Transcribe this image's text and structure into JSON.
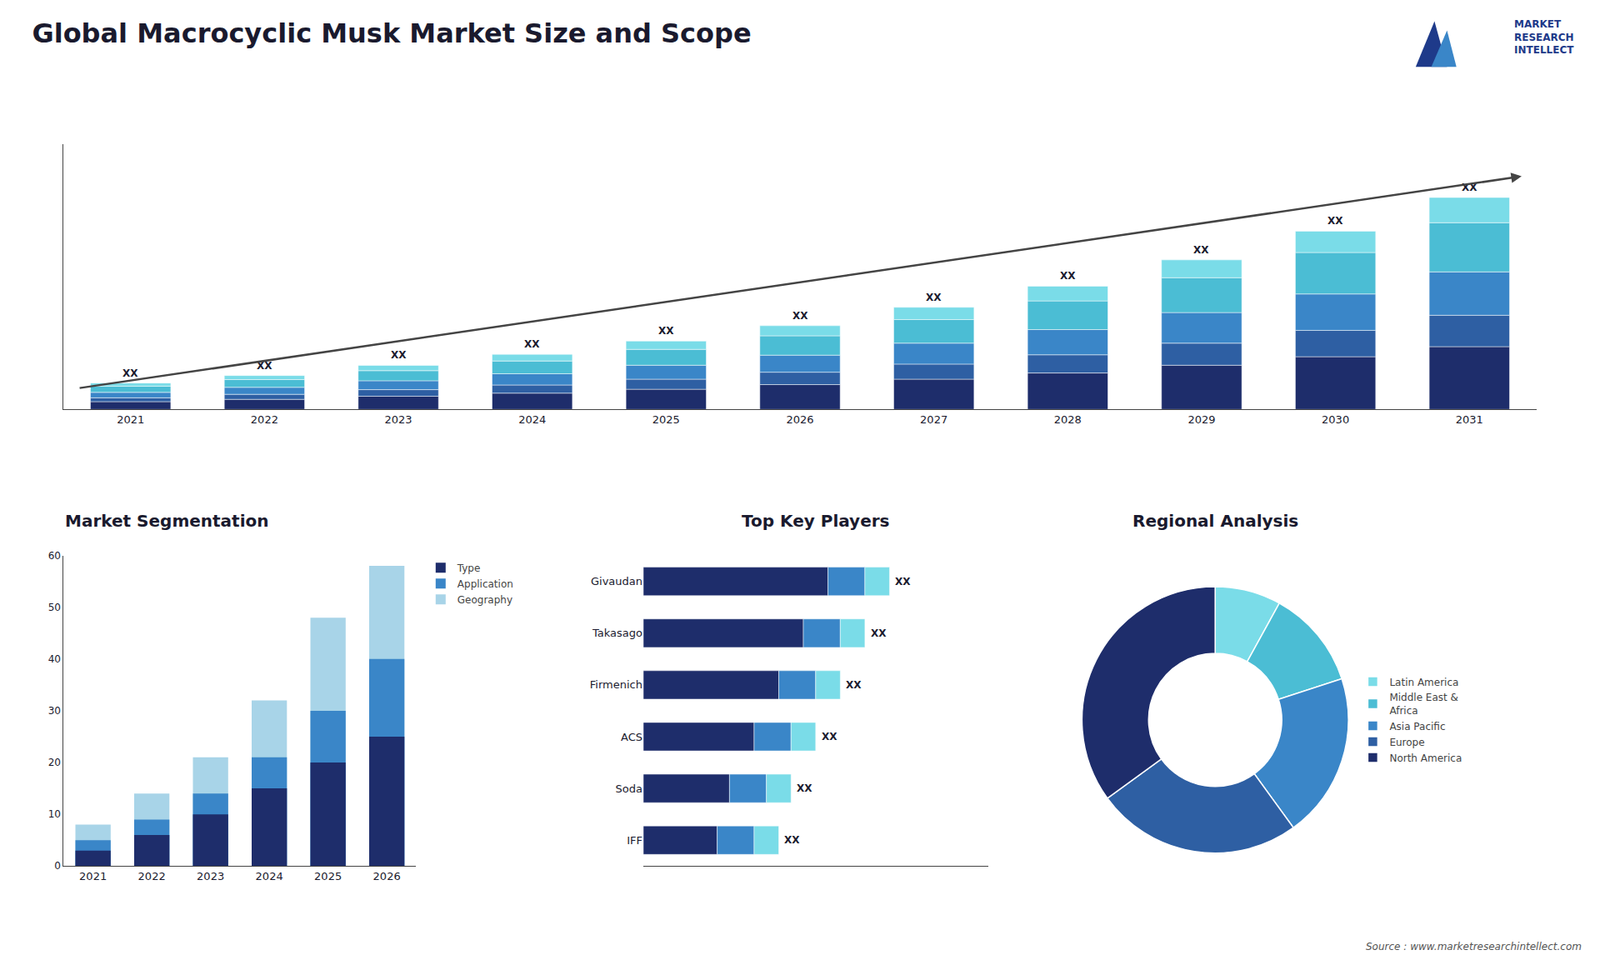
{
  "title": "Global Macrocyclic Musk Market Size and Scope",
  "annotations": [
    "Source : www.marketresearchintellect.com",
    "MARKET\nRESEARCH\nINTELLECT"
  ],
  "chart_data": [
    {
      "type": "bar",
      "stacked": true,
      "categories": [
        "2021",
        "2022",
        "2023",
        "2024",
        "2025",
        "2026",
        "2027",
        "2028",
        "2029",
        "2030",
        "2031"
      ],
      "series": [
        {
          "color": "#1e2d6b",
          "values": [
            1,
            1.3,
            1.7,
            2.1,
            2.6,
            3.2,
            3.9,
            4.7,
            5.7,
            6.8,
            8.1
          ]
        },
        {
          "color": "#2e5fa3",
          "values": [
            0.5,
            0.65,
            0.85,
            1.05,
            1.3,
            1.6,
            1.95,
            2.35,
            2.85,
            3.4,
            4.05
          ]
        },
        {
          "color": "#3a86c8",
          "values": [
            0.7,
            0.9,
            1.15,
            1.45,
            1.8,
            2.2,
            2.7,
            3.25,
            3.95,
            4.7,
            5.6
          ]
        },
        {
          "color": "#4bbdd4",
          "values": [
            0.8,
            1.0,
            1.3,
            1.65,
            2.05,
            2.5,
            3.05,
            3.7,
            4.5,
            5.35,
            6.35
          ]
        },
        {
          "color": "#7adce8",
          "values": [
            0.4,
            0.52,
            0.68,
            0.86,
            1.06,
            1.3,
            1.58,
            1.9,
            2.3,
            2.75,
            3.25
          ]
        }
      ],
      "ylim": [
        0,
        34.1875
      ],
      "tick_labels": "x",
      "grid": false,
      "annotations": [
        {
          "category": "2021",
          "text": "XX"
        },
        {
          "category": "2022",
          "text": "XX"
        },
        {
          "category": "2023",
          "text": "XX"
        },
        {
          "category": "2024",
          "text": "XX"
        },
        {
          "category": "2025",
          "text": "XX"
        },
        {
          "category": "2026",
          "text": "XX"
        },
        {
          "category": "2027",
          "text": "XX"
        },
        {
          "category": "2028",
          "text": "XX"
        },
        {
          "category": "2029",
          "text": "XX"
        },
        {
          "category": "2030",
          "text": "XX"
        },
        {
          "category": "2031",
          "text": "XX"
        }
      ]
    },
    {
      "type": "bar",
      "stacked": false,
      "title": "Market Segmentation",
      "categories": [
        "2021",
        "2022",
        "2023",
        "2024",
        "2025",
        "2026"
      ],
      "series": [
        {
          "name": "Type",
          "color": "#1e2d6b",
          "values": [
            3,
            6,
            10,
            15,
            20,
            25
          ]
        },
        {
          "name": "Application",
          "color": "#3a86c8",
          "values": [
            5,
            9,
            14,
            21,
            30,
            40
          ]
        },
        {
          "name": "Geography",
          "color": "#a8d4e8",
          "values": [
            8,
            14,
            21,
            32,
            48,
            58
          ]
        }
      ],
      "ylim": [
        0,
        60
      ],
      "yticks": [
        0,
        10,
        20,
        30,
        40,
        50,
        60
      ],
      "grid": false,
      "legend": "right"
    },
    {
      "type": "bar",
      "stacked": true,
      "orientation": "horizontal",
      "title": "Top Key Players",
      "categories": [
        "Givaudan",
        "Takasago",
        "Firmenich",
        "ACS",
        "Soda",
        "IFF"
      ],
      "series": [
        {
          "color": "#1e2d6b",
          "values": [
            7.5,
            6.5,
            5.5,
            4.5,
            3.5,
            3.0
          ]
        },
        {
          "color": "#3a86c8",
          "values": [
            1.5,
            1.5,
            1.5,
            1.5,
            1.5,
            1.5
          ]
        },
        {
          "color": "#7adce8",
          "values": [
            1.0,
            1.0,
            1.0,
            1.0,
            1.0,
            1.0
          ]
        }
      ],
      "xlim": [
        0,
        14
      ],
      "tick_labels": "y",
      "grid": false,
      "annotations": [
        {
          "category": "Givaudan",
          "text": "XX"
        },
        {
          "category": "Takasago",
          "text": "XX"
        },
        {
          "category": "Firmenich",
          "text": "XX"
        },
        {
          "category": "ACS",
          "text": "XX"
        },
        {
          "category": "Soda",
          "text": "XX"
        },
        {
          "category": "IFF",
          "text": "XX"
        }
      ]
    },
    {
      "type": "donut",
      "title": "Regional Analysis",
      "categories": [
        "Latin America",
        "Middle East &\nAfrica",
        "Asia Pacific",
        "Europe",
        "North America"
      ],
      "values": [
        8,
        12,
        20,
        25,
        35
      ],
      "colors": [
        "#7adce8",
        "#4bbdd4",
        "#3a86c8",
        "#2e5fa3",
        "#1e2d6b"
      ],
      "legend": "right"
    }
  ]
}
